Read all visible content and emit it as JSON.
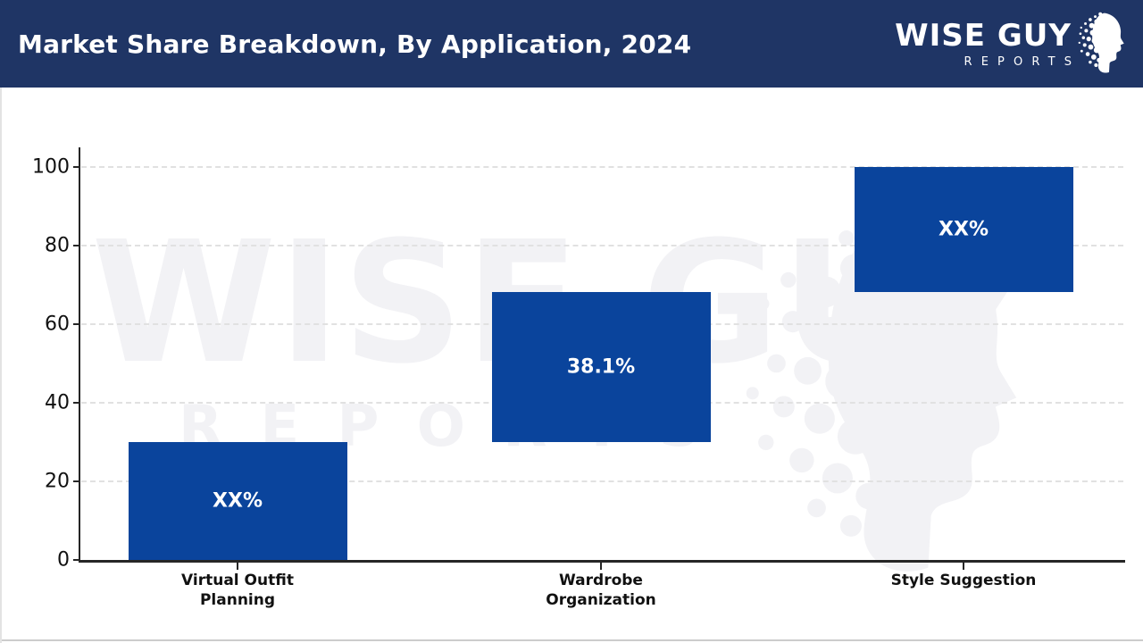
{
  "header": {
    "title": "Market Share Breakdown, By Application, 2024",
    "bg_color": "#1f3565",
    "logo": {
      "line1": "WISE GUY",
      "line2": "REPORTS"
    }
  },
  "watermark": {
    "line1": "WISE GUY",
    "line2": "REPORTS",
    "color": "#f2f2f5"
  },
  "chart_data": {
    "type": "bar",
    "subtype": "floating-segment-columns",
    "title": "Market Share Breakdown, By Application, 2024",
    "categories": [
      "Virtual Outfit\nPlanning",
      "Wardrobe\nOrganization",
      "Style Suggestion"
    ],
    "segments": [
      {
        "category": "Virtual Outfit Planning",
        "start": 0,
        "end": 30,
        "value": 30,
        "label": "XX%"
      },
      {
        "category": "Wardrobe Organization",
        "start": 30,
        "end": 68.1,
        "value": 38.1,
        "label": "38.1%"
      },
      {
        "category": "Style Suggestion",
        "start": 68.1,
        "end": 100,
        "value": 31.9,
        "label": "XX%"
      }
    ],
    "yticks": [
      0,
      20,
      40,
      60,
      80,
      100
    ],
    "ylim": [
      0,
      100
    ],
    "xlabel": "",
    "ylabel": "",
    "grid": "dashed-horizontal",
    "legend": "none",
    "bar_color": "#0a449c",
    "label_color": "#ffffff",
    "axis_color": "#262626"
  }
}
